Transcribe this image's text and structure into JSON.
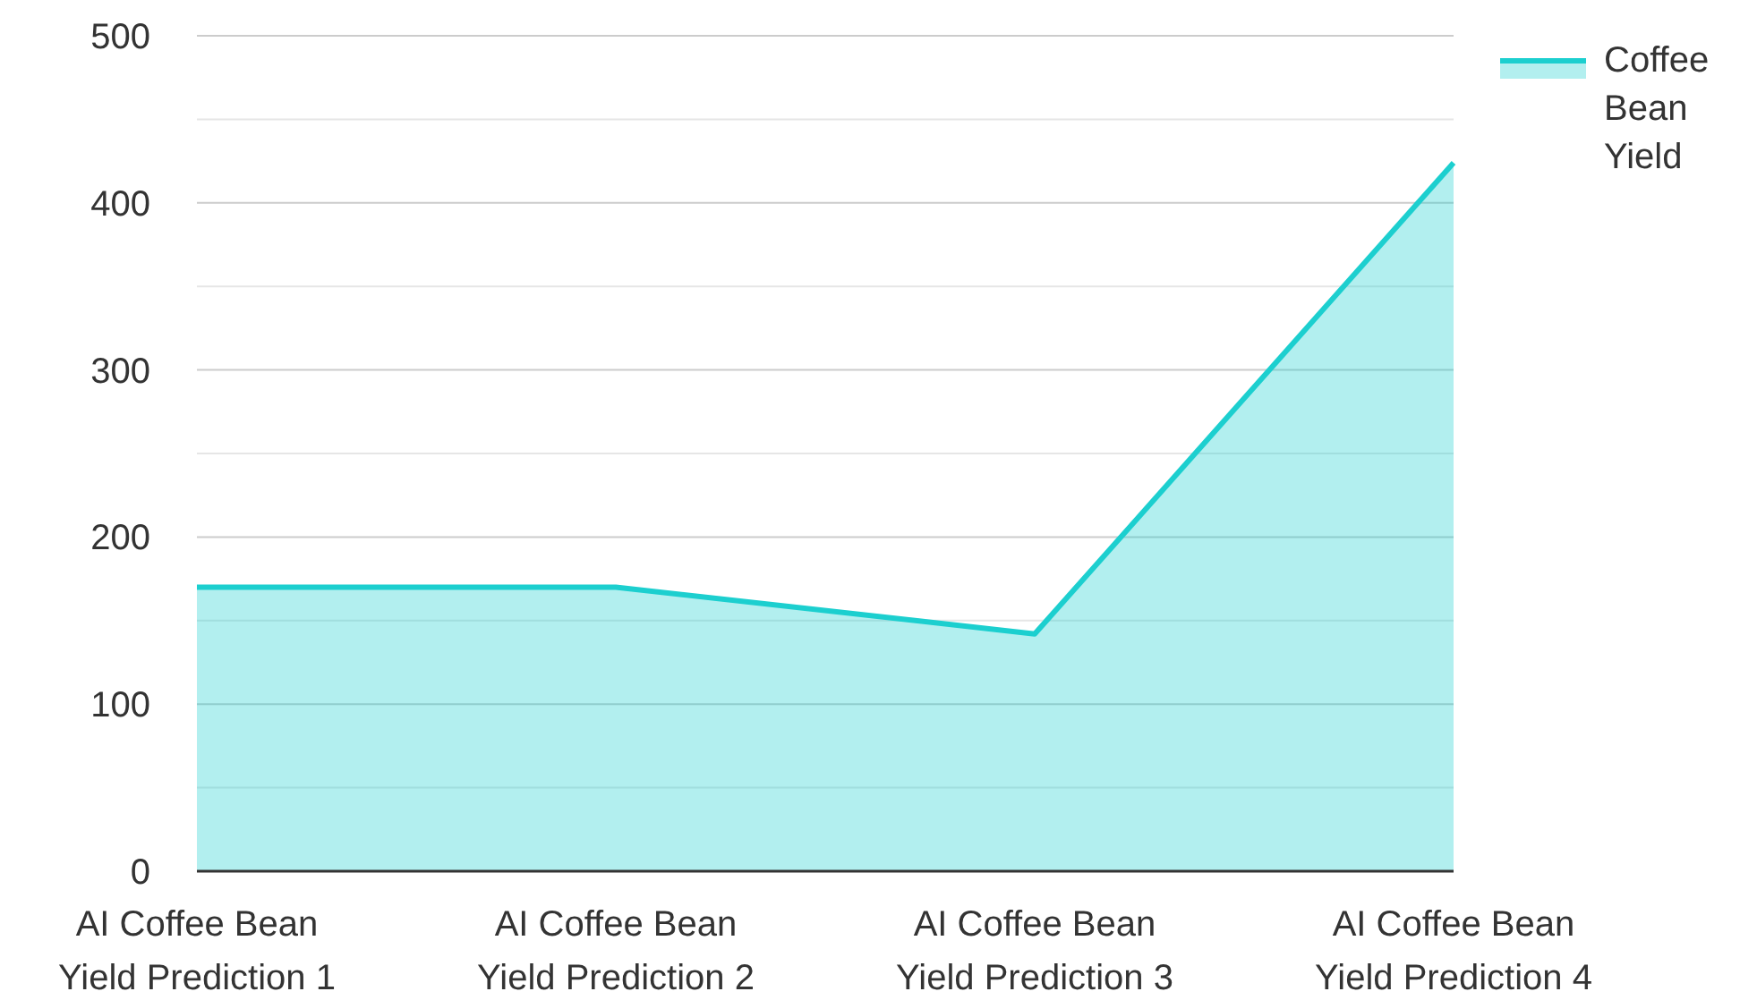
{
  "chart_data": {
    "type": "area",
    "categories": [
      "AI Coffee Bean Yield Prediction 1",
      "AI Coffee Bean Yield Prediction 2",
      "AI Coffee Bean Yield Prediction 3",
      "AI Coffee Bean Yield Prediction 4"
    ],
    "series": [
      {
        "name": "Coffee Bean Yield",
        "color": "#1ccfcf",
        "values": [
          170,
          170,
          142,
          424
        ]
      }
    ],
    "ylim": [
      0,
      500
    ],
    "yticks": [
      0,
      {
        "value": 50,
        "label": null
      },
      100,
      {
        "value": 150,
        "label": null
      },
      200,
      {
        "value": 250,
        "label": null
      },
      300,
      {
        "value": 350,
        "label": null
      },
      400,
      {
        "value": 450,
        "label": null
      },
      500
    ],
    "grid": "y",
    "legend": "top right"
  }
}
